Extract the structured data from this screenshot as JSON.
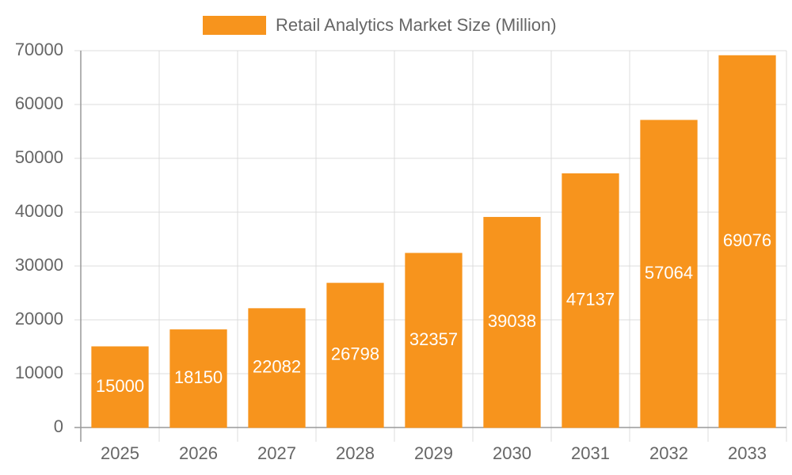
{
  "chart_data": {
    "type": "bar",
    "categories": [
      "2025",
      "2026",
      "2027",
      "2028",
      "2029",
      "2030",
      "2031",
      "2032",
      "2033"
    ],
    "series": [
      {
        "name": "Retail Analytics Market Size (Million)",
        "color": "#f7941d",
        "values": [
          15000,
          18150,
          22082,
          26798,
          32357,
          39038,
          47137,
          57064,
          69076
        ]
      }
    ],
    "ylim": [
      0,
      70000
    ],
    "yticks": [
      0,
      10000,
      20000,
      30000,
      40000,
      50000,
      60000,
      70000
    ],
    "grid": true,
    "legend": "top"
  }
}
